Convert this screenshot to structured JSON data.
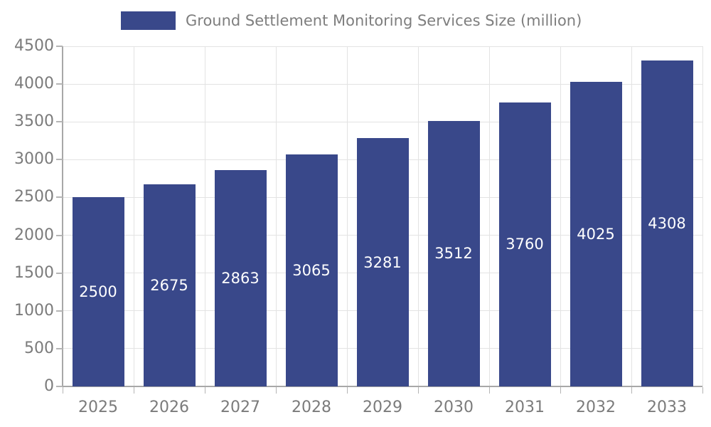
{
  "legend": {
    "label": "Ground Settlement Monitoring Services Size (million)"
  },
  "chart_data": {
    "type": "bar",
    "title": "Ground Settlement Monitoring Services Size (million)",
    "series_name": "Ground Settlement Monitoring Services Size (million)",
    "categories": [
      "2025",
      "2026",
      "2027",
      "2028",
      "2029",
      "2030",
      "2031",
      "2032",
      "2033"
    ],
    "values": [
      2500,
      2675,
      2863,
      3065,
      3281,
      3512,
      3760,
      4025,
      4308
    ],
    "value_labels": [
      "2500",
      "2675",
      "2863",
      "3065",
      "3281",
      "3512",
      "3760",
      "4025",
      "4308"
    ],
    "xlabel": "",
    "ylabel": "",
    "ylim": [
      0,
      4500
    ],
    "ytick_step": 500,
    "yticks": [
      0,
      500,
      1000,
      1500,
      2000,
      2500,
      3000,
      3500,
      4000,
      4500
    ],
    "grid": true,
    "legend_position": "top",
    "colors": {
      "bar": "#39488a",
      "value_label": "#ffffff",
      "grid_line": "#e3e3e3",
      "axis_line": "#a8a8a8",
      "tick_mark": "#b5b5b5",
      "tick_label": "#7b7b7b",
      "legend_text": "#7e7e7e",
      "background": "#ffffff"
    }
  }
}
